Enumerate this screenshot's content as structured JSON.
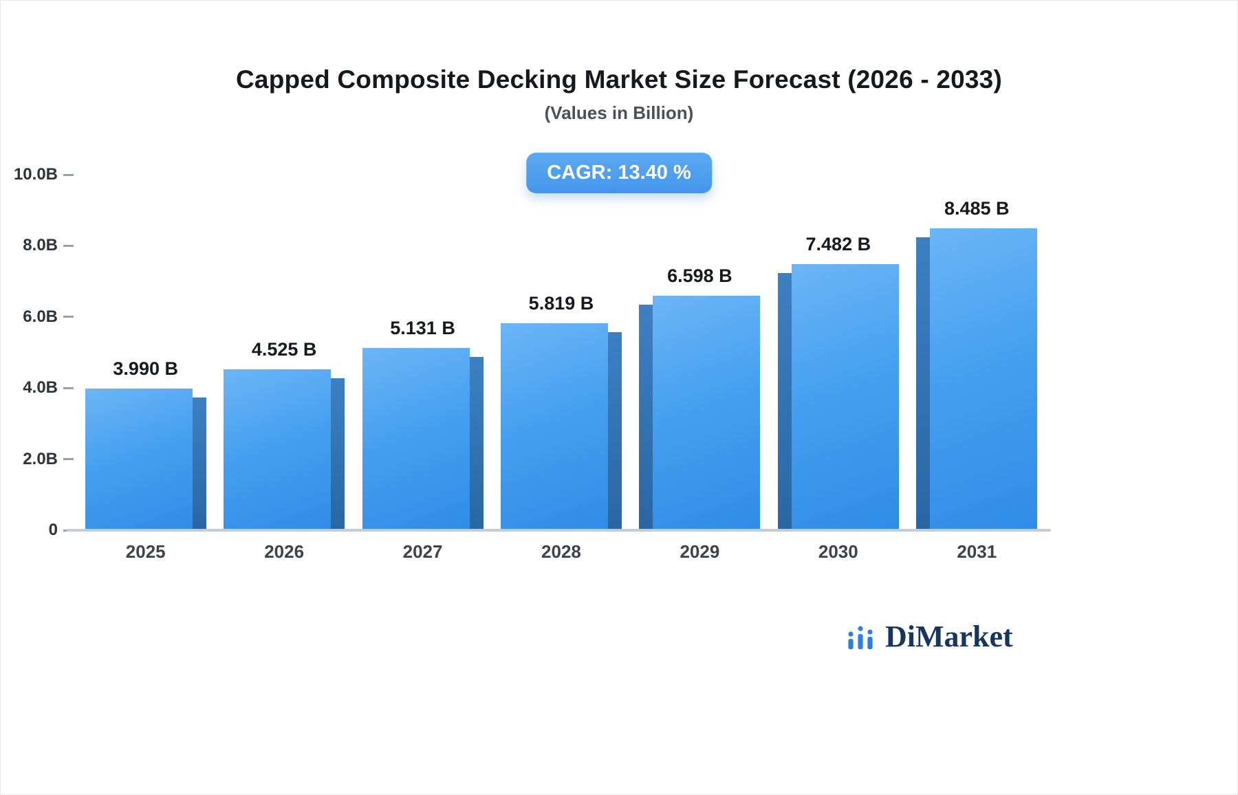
{
  "header": {
    "title": "Capped Composite Decking Market Size Forecast (2026 - 2033)",
    "subtitle": "(Values in Billion)"
  },
  "badge": {
    "label": "CAGR: 13.40 %"
  },
  "chart_data": {
    "type": "bar",
    "title": "Capped Composite Decking Market Size Forecast (2026 - 2033)",
    "subtitle": "(Values in Billion)",
    "categories": [
      "2025",
      "2026",
      "2027",
      "2028",
      "2029",
      "2030",
      "2031"
    ],
    "values": [
      3.99,
      4.525,
      5.131,
      5.819,
      6.598,
      7.482,
      8.485
    ],
    "value_labels": [
      "3.990 B",
      "4.525 B",
      "5.131 B",
      "5.819 B",
      "6.598 B",
      "7.482 B",
      "8.485 B"
    ],
    "xlabel": "",
    "ylabel": "",
    "ylim": [
      0,
      10
    ],
    "yticks": [
      {
        "v": 0,
        "label": "0"
      },
      {
        "v": 2,
        "label": "2.0B"
      },
      {
        "v": 4,
        "label": "4.0B"
      },
      {
        "v": 6,
        "label": "6.0B"
      },
      {
        "v": 8,
        "label": "8.0B"
      },
      {
        "v": 10,
        "label": "10.0B"
      }
    ],
    "grid": false,
    "legend": "none",
    "bar_color_top": "#6cb5f6",
    "bar_color_bottom": "#2f8ce7",
    "bar_side_color": "#2a66a4",
    "annotation": "CAGR: 13.40 %"
  },
  "footer": {
    "brand": "DiMarket"
  },
  "colors": {
    "accent_blue": "#4495ec",
    "bar_blue": "#3b94ea",
    "bar_edge_blue": "#2a66a4",
    "brand_navy": "#17365e",
    "axis_gray": "#c7ccd2"
  }
}
